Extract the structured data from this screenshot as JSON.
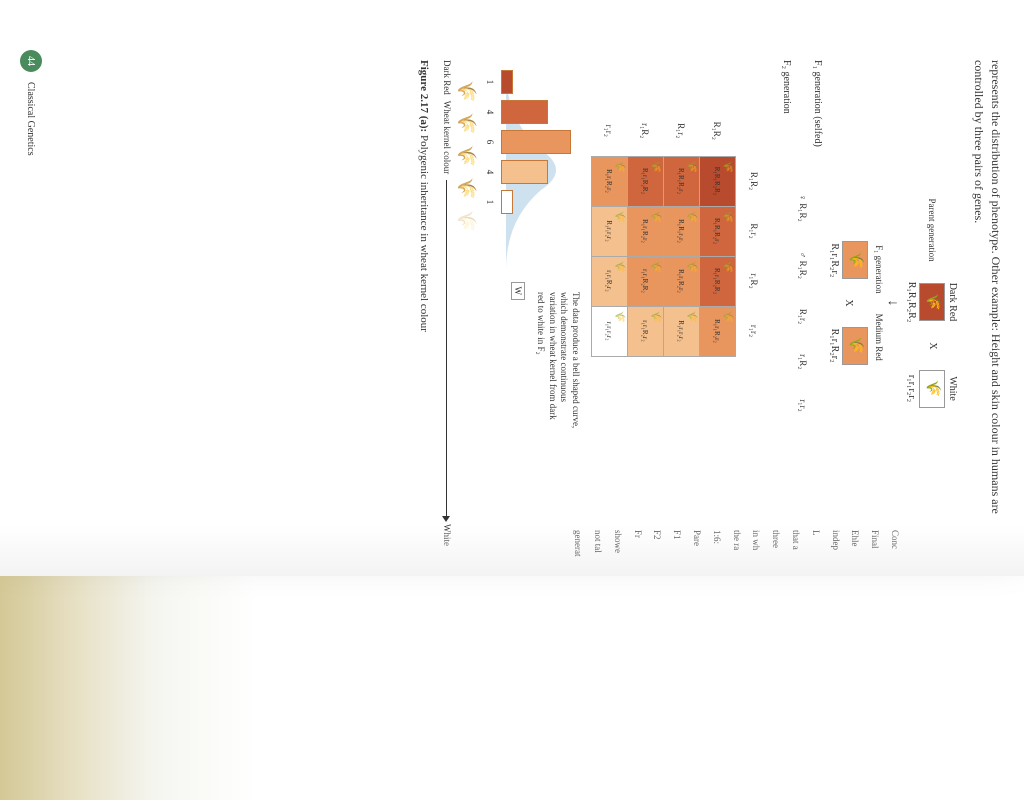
{
  "intro": "represents the distribution of phenotype. Other example: Height and skin colour in humans are controlled by three pairs of genes.",
  "parent_label": "Parent generation",
  "dark_red_label": "Dark Red",
  "dark_red_geno": "R₁R₁R₂R₂",
  "white_label": "White",
  "white_geno": "r₁r₁r₂r₂",
  "medium_red_label": "Medium Red",
  "f1_label": "F₁ generation",
  "f1_geno_a": "R₁r₁R₂r₂",
  "f1_geno_b": "R₁r₁R₂r₂",
  "f1_selfed": "F₁ generation (selfed)",
  "gametes": {
    "male": "♂ R₁R₂",
    "female": "♀ R₁R₂",
    "g2": "R₁r₂",
    "g3": "r₁R₂",
    "g4": "r₁r₂"
  },
  "f2_label": "F₂ generation",
  "row_headers": [
    "R₁R₂",
    "R₁r₂",
    "r₁R₂",
    "r₁r₂"
  ],
  "col_headers": [
    "R₁R₂",
    "R₁r₂",
    "r₁R₂",
    "r₁r₂"
  ],
  "punnett": [
    [
      {
        "geno": "R₁R₁R₂R₂",
        "color": "#b84a2e"
      },
      {
        "geno": "R₁R₁R₂r₂",
        "color": "#d0663e"
      },
      {
        "geno": "R₁r₁R₂R₂",
        "color": "#d0663e"
      },
      {
        "geno": "R₁r₁R₂r₂",
        "color": "#e8955e"
      }
    ],
    [
      {
        "geno": "R₁R₁R₂r₂",
        "color": "#d0663e"
      },
      {
        "geno": "R₁R₁r₂r₂",
        "color": "#e8955e"
      },
      {
        "geno": "R₁r₁R₂r₂",
        "color": "#e8955e"
      },
      {
        "geno": "R₁r₁r₂r₂",
        "color": "#f4c08e"
      }
    ],
    [
      {
        "geno": "R₁r₁R₂R₂",
        "color": "#d0663e"
      },
      {
        "geno": "R₁r₁R₂r₂",
        "color": "#e8955e"
      },
      {
        "geno": "r₁r₁R₂R₂",
        "color": "#e8955e"
      },
      {
        "geno": "r₁r₁R₂r₂",
        "color": "#f4c08e"
      }
    ],
    [
      {
        "geno": "R₁r₁R₂r₂",
        "color": "#e8955e"
      },
      {
        "geno": "R₁r₁r₂r₂",
        "color": "#f4c08e"
      },
      {
        "geno": "r₁r₁R₂r₂",
        "color": "#f4c08e"
      },
      {
        "geno": "r₁r₁r₂r₂",
        "color": "#ffffff"
      }
    ]
  ],
  "chart": {
    "bell_color": "#b8d4e8",
    "values": [
      1,
      4,
      6,
      4,
      1
    ],
    "bar_colors": [
      "#b84a2e",
      "#d0663e",
      "#e8955e",
      "#f4c08e",
      "#ffffff"
    ],
    "max": 6,
    "w_label": "W"
  },
  "chart_note": "The data produce a bell shaped curve, which demonstrate continuous variation in wheat kernel from dark red to white in F₂",
  "wheat_colors": [
    "#8b2e1a",
    "#b84a2e",
    "#d0663e",
    "#e8955e",
    "#cccccc"
  ],
  "axis_left": "Dark Red",
  "axis_mid": "Wheat kernel colour",
  "axis_right": "White",
  "caption_bold": "Figure 2.17 (a):",
  "caption_text": " Polygenic inheritance in wheat kernel colour",
  "page_number": "44",
  "footer_text": "Classical Genetics",
  "right_fragments": [
    "Conc",
    "Final",
    "Ehle",
    "indep",
    "L",
    "that a",
    "three",
    "in wh",
    "the ra",
    "1:6:",
    "Pare",
    "F1",
    "F2",
    "Fr",
    "showe",
    "not tal",
    "generat"
  ]
}
